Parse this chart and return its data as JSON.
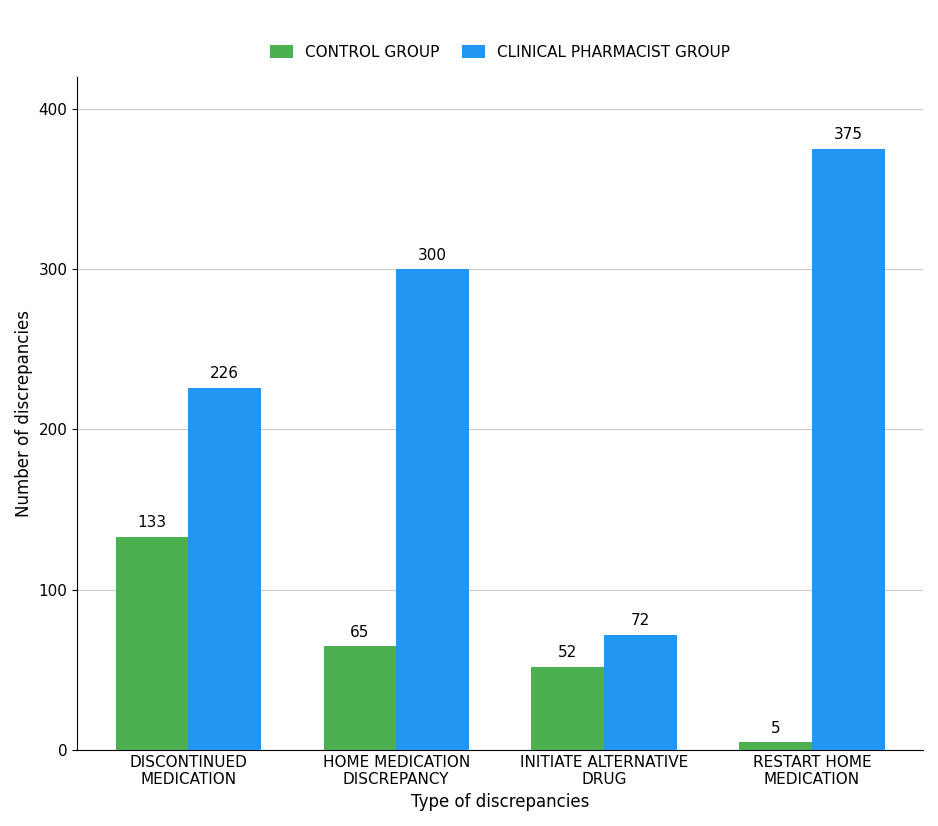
{
  "categories": [
    "DISCONTINUED\nMEDICATION",
    "HOME MEDICATION\nDISCREPANCY",
    "INITIATE ALTERNATIVE\nDRUG",
    "RESTART HOME\nMEDICATION"
  ],
  "control_values": [
    133,
    65,
    52,
    5
  ],
  "pharmacist_values": [
    226,
    300,
    72,
    375
  ],
  "control_color": "#4CAF50",
  "pharmacist_color": "#2196F3",
  "control_label": "CONTROL GROUP",
  "pharmacist_label": "CLINICAL PHARMACIST GROUP",
  "ylabel": "Number of discrepancies",
  "xlabel": "Type of discrepancies",
  "ylim": [
    0,
    420
  ],
  "yticks": [
    0,
    100,
    200,
    300,
    400
  ],
  "bar_width": 0.35,
  "background_color": "#ffffff",
  "grid_color": "#cccccc",
  "label_fontsize": 12,
  "tick_fontsize": 11,
  "legend_fontsize": 11,
  "value_fontsize": 11
}
